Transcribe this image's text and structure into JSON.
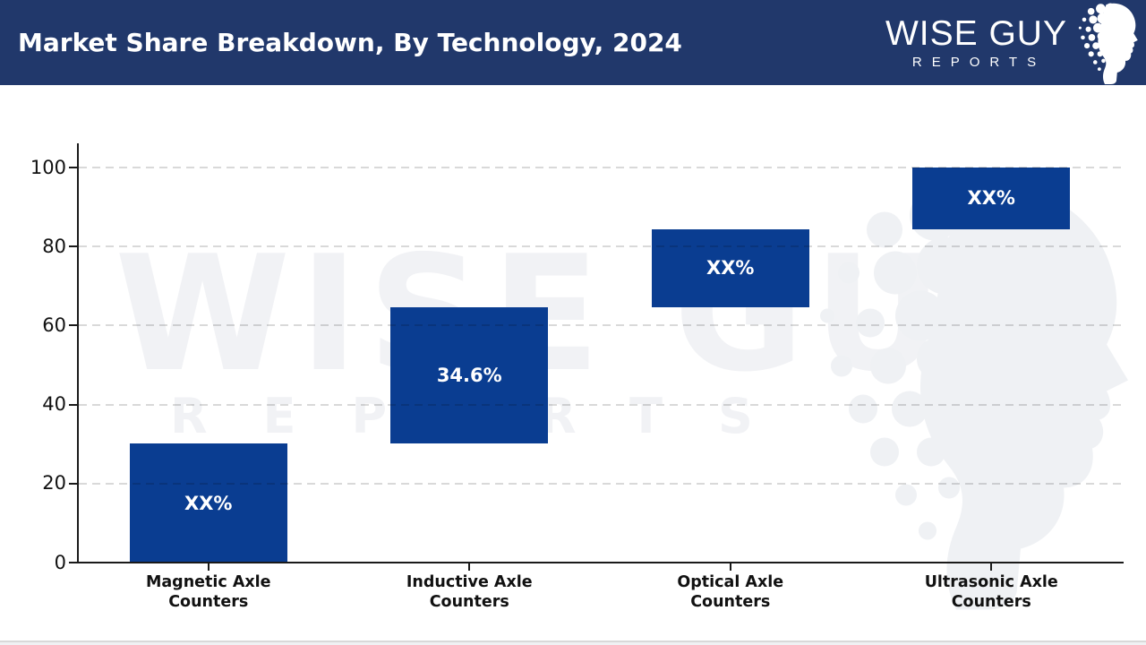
{
  "header": {
    "title": "Market Share Breakdown, By Technology, 2024",
    "bg_color": "#21386b",
    "brand": {
      "line1": "WISE GUY",
      "line2": "REPORTS",
      "icon": "dotted-head-icon"
    }
  },
  "watermark": {
    "line1": "WISE GUY",
    "line2": "REPORTS",
    "head_icon": "dotted-head-icon"
  },
  "chart_data": {
    "type": "bar",
    "subtype": "floating-waterfall",
    "title": "Market Share Breakdown, By Technology, 2024",
    "categories": [
      "Magnetic Axle\nCounters",
      "Inductive Axle\nCounters",
      "Optical Axle\nCounters",
      "Ultrasonic Axle\nCounters"
    ],
    "bars": [
      {
        "category": "Magnetic Axle\nCounters",
        "start": 0,
        "end": 30.1,
        "value_label": "XX%"
      },
      {
        "category": "Inductive Axle\nCounters",
        "start": 30.1,
        "end": 64.7,
        "value_label": "34.6%"
      },
      {
        "category": "Optical Axle\nCounters",
        "start": 64.7,
        "end": 84.4,
        "value_label": "XX%"
      },
      {
        "category": "Ultrasonic Axle\nCounters",
        "start": 84.4,
        "end": 100,
        "value_label": "XX%"
      }
    ],
    "y_ticks": [
      0,
      20,
      40,
      60,
      80,
      100
    ],
    "ylim": [
      0,
      106
    ],
    "xlabel": "",
    "ylabel": "",
    "bar_color": "#0a3d91",
    "value_label_color": "#ffffff",
    "grid": "dashed-horizontal",
    "grid_color": "#d9d9d9",
    "legend_position": "none"
  }
}
